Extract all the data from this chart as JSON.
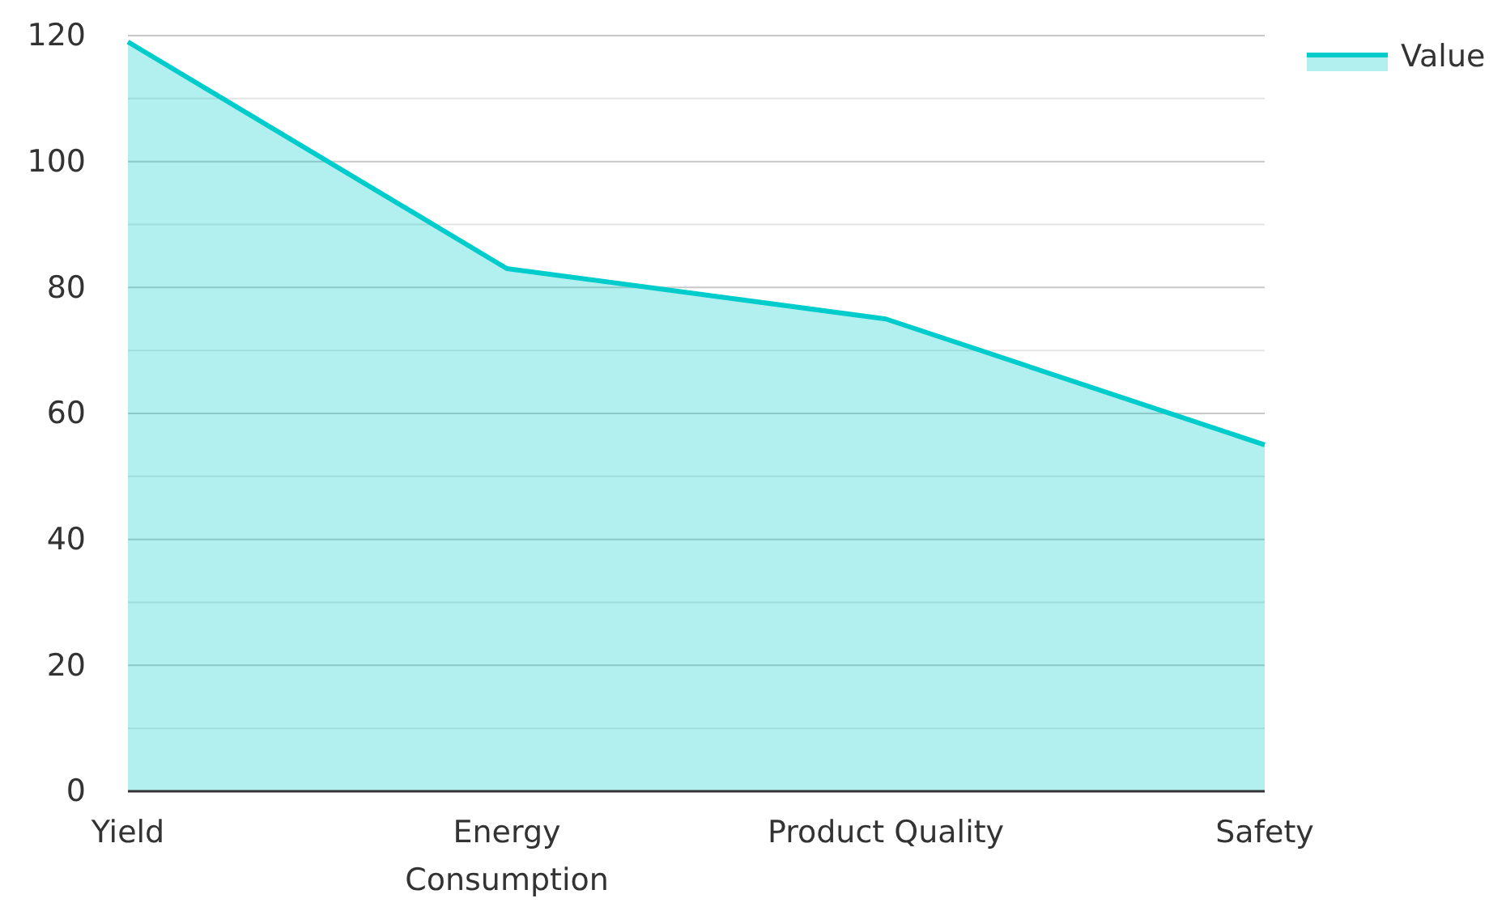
{
  "chart_data": {
    "type": "area",
    "categories": [
      "Yield",
      "Energy Consumption",
      "Product Quality",
      "Safety"
    ],
    "series": [
      {
        "name": "Value",
        "color": "#00cccc",
        "values": [
          119,
          83,
          75,
          55
        ]
      }
    ],
    "ylim": [
      0,
      120
    ],
    "yticks": [
      0,
      {
        "value": 10,
        "label": null
      },
      20,
      {
        "value": 30,
        "label": null
      },
      40,
      {
        "value": 50,
        "label": null
      },
      60,
      {
        "value": 70,
        "label": null
      },
      80,
      {
        "value": 90,
        "label": null
      },
      100,
      {
        "value": 110,
        "label": null
      },
      120
    ],
    "grid": "y",
    "legend": "top right"
  }
}
